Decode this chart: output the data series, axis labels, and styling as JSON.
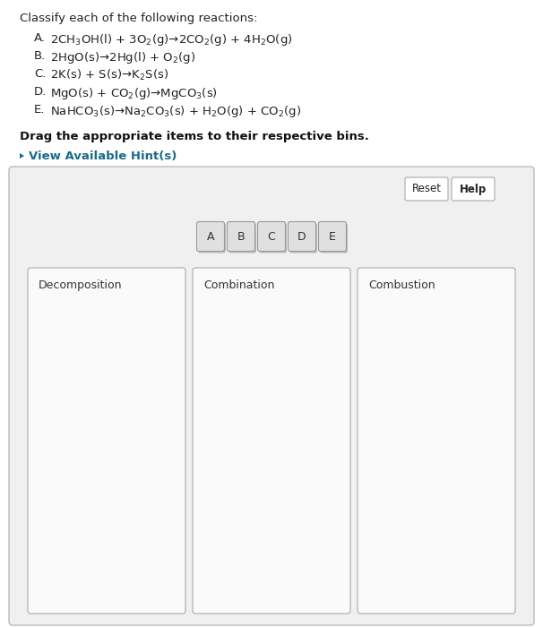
{
  "title": "Classify each of the following reactions:",
  "reactions": [
    {
      "label": "A.",
      "text": "2CH$_3$OH(l) + 3O$_2$(g)→2CO$_2$(g) + 4H$_2$O(g)"
    },
    {
      "label": "B.",
      "text": "2HgO(s)→2Hg(l) + O$_2$(g)"
    },
    {
      "label": "C.",
      "text": "2K(s) + S(s)→K$_2$S(s)"
    },
    {
      "label": "D.",
      "text": "MgO(s) + CO$_2$(g)→MgCO$_3$(s)"
    },
    {
      "label": "E.",
      "text": "NaHCO$_3$(s)→Na$_2$CO$_3$(s) + H$_2$O(g) + CO$_2$(g)"
    }
  ],
  "drag_text": "Drag the appropriate items to their respective bins.",
  "hint_text": "View Available Hint(s)",
  "hint_color": "#1a6b8a",
  "buttons": [
    "A",
    "B",
    "C",
    "D",
    "E"
  ],
  "bins": [
    "Decomposition",
    "Combination",
    "Combustion"
  ],
  "bg_color": "#ffffff",
  "panel_bg": "#f0f0f0",
  "border_color": "#bbbbbb",
  "button_bg": "#e0e0e0",
  "button_border": "#999999",
  "bin_bg": "#fafafa",
  "reset_label": "Reset",
  "help_label": "Help",
  "title_fontsize": 9.5,
  "reaction_fontsize": 9.5,
  "drag_fontsize": 9.5,
  "hint_fontsize": 9.5
}
